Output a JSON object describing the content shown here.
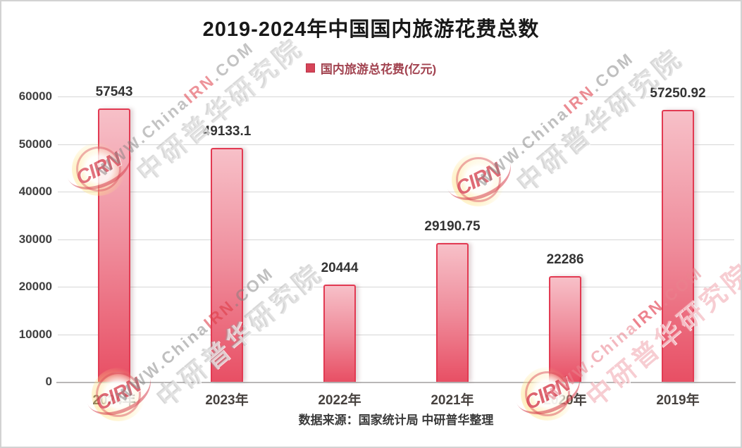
{
  "title": "2019-2024年中国国内旅游花费总数",
  "legend": {
    "label": "国内旅游总花费(亿元)"
  },
  "source": "数据来源：国家统计局 中研普华整理",
  "watermark": {
    "url_prefix": "WWW.China",
    "url_accent": "IRN",
    "url_suffix": ".COM",
    "org": "中研普华研究院",
    "logo_text": "CIRN"
  },
  "colors": {
    "bar_fill_top": "#f7c0c8",
    "bar_fill_bottom": "#e84f64",
    "bar_border": "#e23a52",
    "legend_marker": "#d64458",
    "gridline": "#d6d6d6",
    "axis_text": "#3f3f3f",
    "title_text": "#191919",
    "legend_text": "#a24350"
  },
  "chart_data": {
    "type": "bar",
    "title": "2019-2024年中国国内旅游花费总数",
    "series_name": "国内旅游总花费(亿元)",
    "categories": [
      "2024年",
      "2023年",
      "2022年",
      "2021年",
      "2020年",
      "2019年"
    ],
    "values": [
      57543,
      49133.1,
      20444,
      29190.75,
      22286,
      57250.92
    ],
    "value_labels": [
      "57543",
      "49133.1",
      "20444",
      "29190.75",
      "22286",
      "57250.92"
    ],
    "ylabel": "",
    "xlabel": "",
    "ylim": [
      0,
      60000
    ],
    "ytick_interval": 10000,
    "yticks": [
      "60000",
      "50000",
      "40000",
      "30000",
      "20000",
      "10000",
      "0"
    ],
    "grid": true,
    "legend_position": "top",
    "source": "数据来源：国家统计局 中研普华整理"
  }
}
